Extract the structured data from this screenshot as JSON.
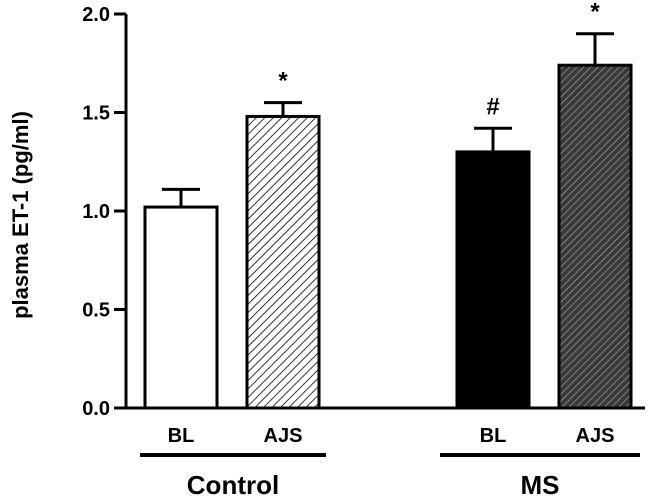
{
  "chart_data": {
    "type": "bar",
    "ylabel": "plasma ET-1 (pg/ml)",
    "ylim": [
      0,
      2.0
    ],
    "yticks": [
      "0.0",
      "0.5",
      "1.0",
      "1.5",
      "2.0"
    ],
    "grid": false,
    "groups": [
      {
        "label": "Control",
        "bars": [
          {
            "label": "BL",
            "value": 1.02,
            "error": 0.09,
            "fill": "white",
            "annotation": ""
          },
          {
            "label": "AJS",
            "value": 1.48,
            "error": 0.07,
            "fill": "light-hatch",
            "annotation": "*"
          }
        ]
      },
      {
        "label": "MS",
        "bars": [
          {
            "label": "BL",
            "value": 1.3,
            "error": 0.12,
            "fill": "black",
            "annotation": "#"
          },
          {
            "label": "AJS",
            "value": 1.74,
            "error": 0.16,
            "fill": "dark-hatch",
            "annotation": "*"
          }
        ]
      }
    ]
  },
  "colors": {
    "axis": "#000000",
    "bar_black": "#000000",
    "bar_white": "#ffffff",
    "dark_hatch_bg": "#3a3a3a"
  }
}
